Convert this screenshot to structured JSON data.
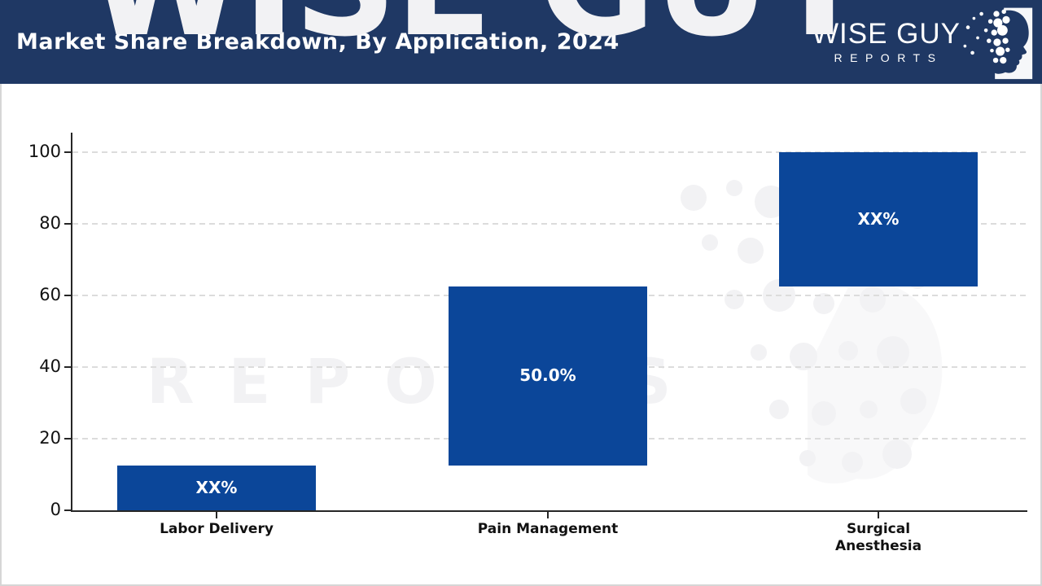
{
  "header": {
    "title": "Market Share Breakdown, By Application, 2024",
    "logo_line1": "WISE GUY",
    "logo_line2": "REPORTS"
  },
  "watermark": {
    "line1": "WISE GUY",
    "line2": "REPORTS"
  },
  "chart_data": {
    "type": "bar",
    "subtype": "floating-segment-bars",
    "title": "Market Share Breakdown, By Application, 2024",
    "categories": [
      "Labor Delivery",
      "Pain Management",
      "Surgical\nAnesthesia"
    ],
    "bars": [
      {
        "category": "Labor Delivery",
        "start": 0,
        "end": 12.5,
        "label": "XX%"
      },
      {
        "category": "Pain Management",
        "start": 12.5,
        "end": 62.5,
        "label": "50.0%"
      },
      {
        "category": "Surgical Anesthesia",
        "start": 62.5,
        "end": 100,
        "label": "XX%"
      }
    ],
    "xlabel": "",
    "ylabel": "",
    "ylim": [
      0,
      105.5
    ],
    "yticks": [
      0,
      20,
      40,
      60,
      80,
      100
    ],
    "grid": true,
    "grid_style": "dashed",
    "legend": null,
    "bar_color": "#0b4699",
    "header_color": "#1f3864",
    "watermark_text": "WISE GUY REPORTS"
  }
}
